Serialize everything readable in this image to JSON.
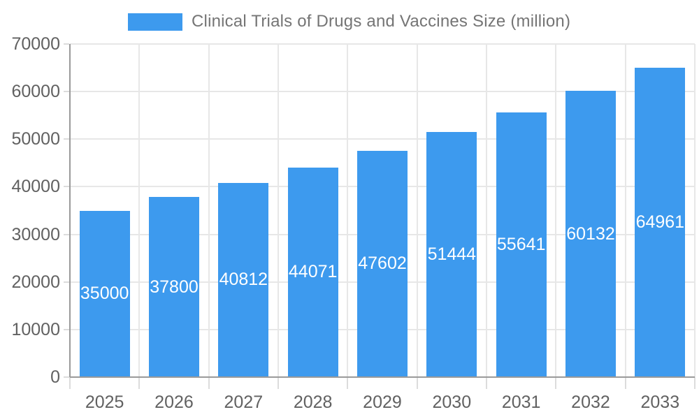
{
  "chart_data": {
    "type": "bar",
    "title": "Clinical Trials of Drugs and Vaccines Size (million)",
    "categories": [
      "2025",
      "2026",
      "2027",
      "2028",
      "2029",
      "2030",
      "2031",
      "2032",
      "2033"
    ],
    "values": [
      35000,
      37800,
      40812,
      44071,
      47602,
      51444,
      55641,
      60132,
      64961
    ],
    "xlabel": "",
    "ylabel": "",
    "ylim": [
      0,
      70000
    ],
    "yticks": [
      0,
      10000,
      20000,
      30000,
      40000,
      50000,
      60000,
      70000
    ],
    "grid": true,
    "legend_position": "top",
    "bar_labels_inside": true,
    "colors": {
      "bar": "#3D9AEE",
      "annotation_text": "#FFFFFF",
      "title_text": "#757575",
      "axis_text": "#616161",
      "gridline": "#E7E7E7",
      "axis_line": "#9A9A9A",
      "tick": "#DCDCDC",
      "background": "#FFFFFF"
    }
  }
}
